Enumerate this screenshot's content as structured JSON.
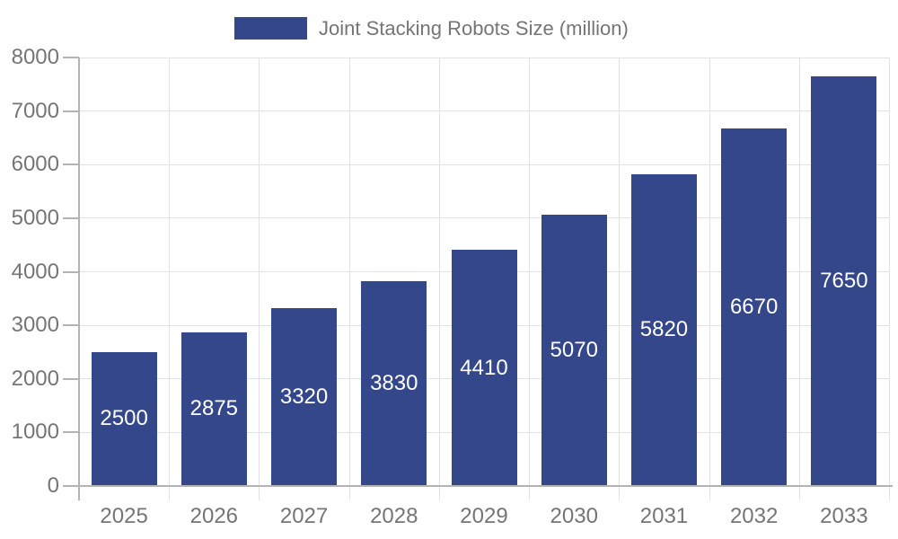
{
  "chart_data": {
    "type": "bar",
    "title": "Joint Stacking Robots Size (million)",
    "legend": {
      "position": "top-center",
      "entries": [
        "Joint Stacking Robots Size (million)"
      ]
    },
    "categories": [
      "2025",
      "2026",
      "2027",
      "2028",
      "2029",
      "2030",
      "2031",
      "2032",
      "2033"
    ],
    "values": [
      2500,
      2875,
      3320,
      3830,
      4410,
      5070,
      5820,
      6670,
      7650
    ],
    "bar_labels": [
      "2500",
      "2875",
      "3320",
      "3830",
      "4410",
      "5070",
      "5820",
      "6670",
      "7650"
    ],
    "xlabel": "",
    "ylabel": "",
    "ylim": [
      0,
      8000
    ],
    "yticks": [
      0,
      1000,
      2000,
      3000,
      4000,
      5000,
      6000,
      7000,
      8000
    ],
    "grid": true,
    "colors": {
      "bar": "#35478B",
      "bar_label": "#FFFFFF",
      "axis_text": "#757575",
      "legend_text": "#757575",
      "gridline": "#E2E2E2",
      "axis_line": "#B3B3B3",
      "background": "#FFFFFF"
    }
  }
}
